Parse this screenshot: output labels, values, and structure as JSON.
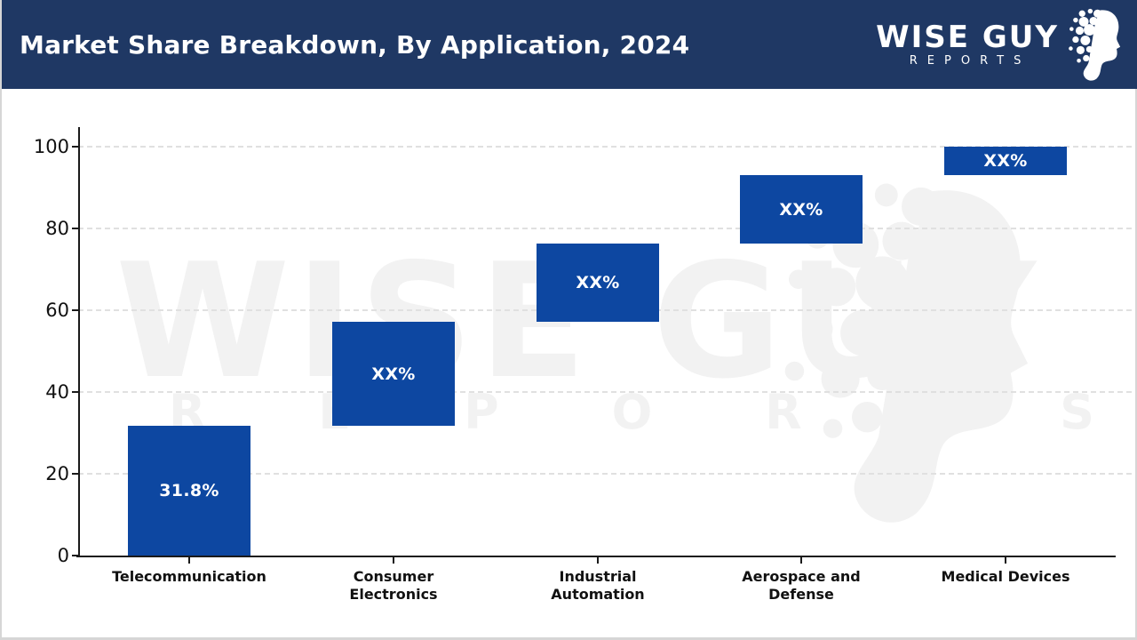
{
  "header": {
    "title": "Market Share Breakdown, By Application, 2024",
    "bg_color": "#1f3864",
    "logo": {
      "line1": "WISE GUY",
      "line2": "REPORTS"
    }
  },
  "watermark": {
    "line1": "WISE GUY",
    "line2": "R E P O R T S"
  },
  "chart_data": {
    "type": "bar",
    "subtype": "waterfall-floating-bars",
    "title": "Market Share Breakdown, By Application, 2024",
    "categories": [
      "Telecommunication",
      "Consumer Electronics",
      "Industrial Automation",
      "Aerospace and Defense",
      "Medical Devices"
    ],
    "category_label_lines": [
      [
        "Telecommunication"
      ],
      [
        "Consumer",
        "Electronics"
      ],
      [
        "Industrial",
        "Automation"
      ],
      [
        "Aerospace and",
        "Defense"
      ],
      [
        "Medical Devices"
      ]
    ],
    "series": [
      {
        "name": "Market Share (%)",
        "segments": [
          {
            "category": "Telecommunication",
            "start": 0,
            "end": 31.8,
            "label": "31.8%"
          },
          {
            "category": "Consumer Electronics",
            "start": 31.8,
            "end": 57.1,
            "label": "XX%"
          },
          {
            "category": "Industrial Automation",
            "start": 57.1,
            "end": 76.3,
            "label": "XX%"
          },
          {
            "category": "Aerospace and Defense",
            "start": 76.3,
            "end": 93.0,
            "label": "XX%"
          },
          {
            "category": "Medical Devices",
            "start": 93.0,
            "end": 100.0,
            "label": "XX%"
          }
        ]
      }
    ],
    "xlabel": "",
    "ylabel": "",
    "ylim": [
      0,
      100
    ],
    "yticks": [
      0,
      20,
      40,
      60,
      80,
      100
    ],
    "grid": "horizontal-dashed",
    "legend": "none",
    "bar_color": "#0d47a1",
    "bar_label_color": "#ffffff"
  }
}
